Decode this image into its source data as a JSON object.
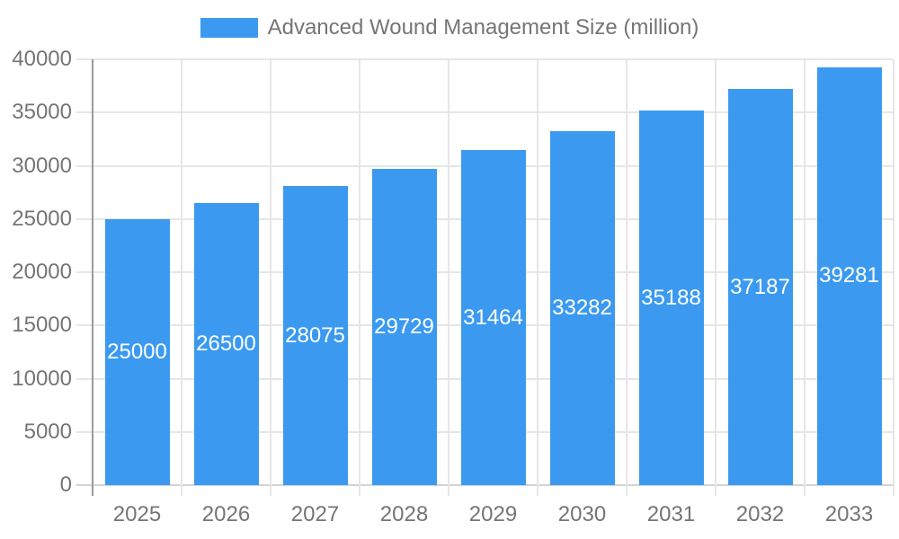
{
  "chart_data": {
    "type": "bar",
    "title": "",
    "xlabel": "",
    "ylabel": "",
    "categories": [
      "2025",
      "2026",
      "2027",
      "2028",
      "2029",
      "2030",
      "2031",
      "2032",
      "2033"
    ],
    "series": [
      {
        "name": "Advanced Wound Management Size (million)",
        "values": [
          25000,
          26500,
          28075,
          29729,
          31464,
          33282,
          35188,
          37187,
          39281
        ]
      }
    ],
    "value_labels": [
      "25000",
      "26500",
      "28075",
      "29729",
      "31464",
      "33282",
      "35188",
      "37187",
      "39281"
    ],
    "ylim": [
      0,
      40000
    ],
    "ytick_step": 5000,
    "ytick_labels": [
      "0",
      "5000",
      "10000",
      "15000",
      "20000",
      "25000",
      "30000",
      "35000",
      "40000"
    ],
    "grid": true,
    "legend_position": "top-center",
    "colors": {
      "bar_fill": "#3B9AF0",
      "bar_value_text": "#FFFFFF",
      "axis_text": "#757575",
      "legend_text": "#757575",
      "grid_line": "#E6E6E6",
      "baseline": "#D4D4D4",
      "axis_line": "#9A9A9A",
      "background": "#FFFFFF"
    }
  }
}
